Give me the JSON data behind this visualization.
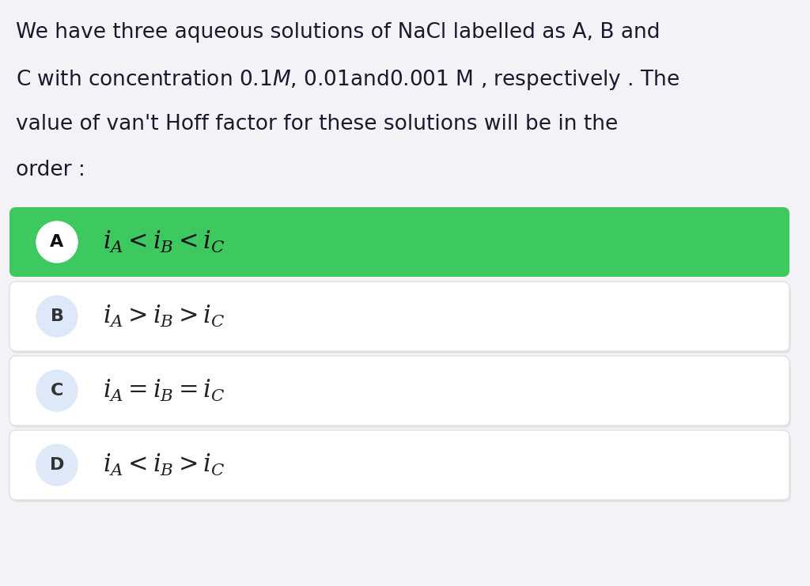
{
  "background_color": "#f2f2f7",
  "question_text_color": "#1a1a2e",
  "question_text_lines": [
    "We have three aqueous solutions of NaCl labelled as A, B and",
    "C with concentration 0.1$M$, 0.01and0.001 M , respectively . The",
    "value of van't Hoff factor for these solutions will be in the",
    "order :"
  ],
  "options": [
    {
      "label": "A",
      "math": "$i_A < i_B < i_C$",
      "correct": true,
      "bg_color": "#3dc95f",
      "label_bg": "#ffffff",
      "label_text_color": "#111111",
      "text_color": "#111111",
      "box_edge_color": "#3dc95f",
      "shadow": false
    },
    {
      "label": "B",
      "math": "$i_A > i_B > i_C$",
      "correct": false,
      "bg_color": "#ffffff",
      "label_bg": "#dde8f8",
      "label_text_color": "#333333",
      "text_color": "#222222",
      "box_edge_color": "#e0e0e0",
      "shadow": true
    },
    {
      "label": "C",
      "math": "$i_A = i_B = i_C$",
      "correct": false,
      "bg_color": "#ffffff",
      "label_bg": "#dde8f8",
      "label_text_color": "#333333",
      "text_color": "#222222",
      "box_edge_color": "#e0e0e0",
      "shadow": true
    },
    {
      "label": "D",
      "math": "$i_A < i_B > i_C$",
      "correct": false,
      "bg_color": "#ffffff",
      "label_bg": "#dde8f8",
      "label_text_color": "#333333",
      "text_color": "#222222",
      "box_edge_color": "#e0e0e0",
      "shadow": true
    }
  ],
  "question_fontsize": 19,
  "option_fontsize": 22,
  "label_fontsize": 16,
  "fig_width": 10.24,
  "fig_height": 7.41,
  "dpi": 100
}
